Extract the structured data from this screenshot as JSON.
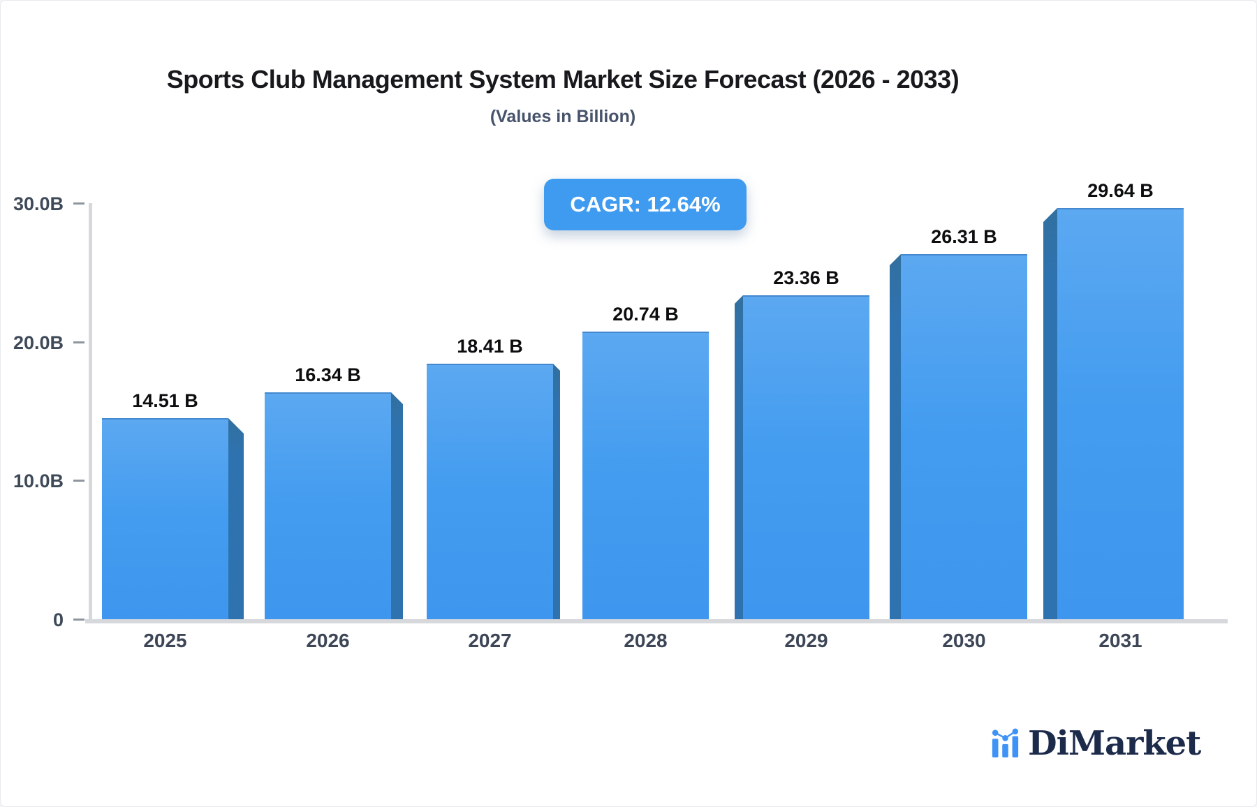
{
  "header": {
    "title": "Sports Club Management System Market Size Forecast (2026 - 2033)",
    "subtitle": "(Values in Billion)"
  },
  "badge": {
    "label": "CAGR: 12.64%",
    "bg_color": "#3f9bf0",
    "text_color": "#ffffff"
  },
  "chart_data": {
    "type": "bar",
    "title": "Sports Club Management System Market Size Forecast (2026 - 2033)",
    "subtitle": "(Values in Billion)",
    "categories": [
      "2025",
      "2026",
      "2027",
      "2028",
      "2029",
      "2030",
      "2031"
    ],
    "values": [
      14.51,
      16.34,
      18.41,
      20.74,
      23.36,
      26.31,
      29.64
    ],
    "value_labels": [
      "14.51 B",
      "16.34 B",
      "18.41 B",
      "20.74 B",
      "23.36 B",
      "26.31 B",
      "29.64 B"
    ],
    "y_ticks": [
      {
        "label": "30.0B",
        "value": 30
      },
      {
        "label": "20.0B",
        "value": 20
      },
      {
        "label": "10.0B",
        "value": 10
      },
      {
        "label": "0",
        "value": 0
      }
    ],
    "ylim": [
      0,
      30
    ],
    "xlabel": "",
    "ylabel": "",
    "grid": false,
    "legend": "none",
    "style_3d": true,
    "bar_face_top_color": "#5ca8f1",
    "bar_face_bottom_color": "#3e96ee",
    "bar_side_color": "#2e72b0",
    "axis_line_color": "#d6d8dc",
    "tick_color": "#8f969f",
    "axis_label_color": "#3d4657"
  },
  "logo": {
    "text": "DiMarket",
    "icon": "bar-chart-trend-icon",
    "icon_color": "#3f93f7",
    "text_color": "#1d2b4b"
  }
}
